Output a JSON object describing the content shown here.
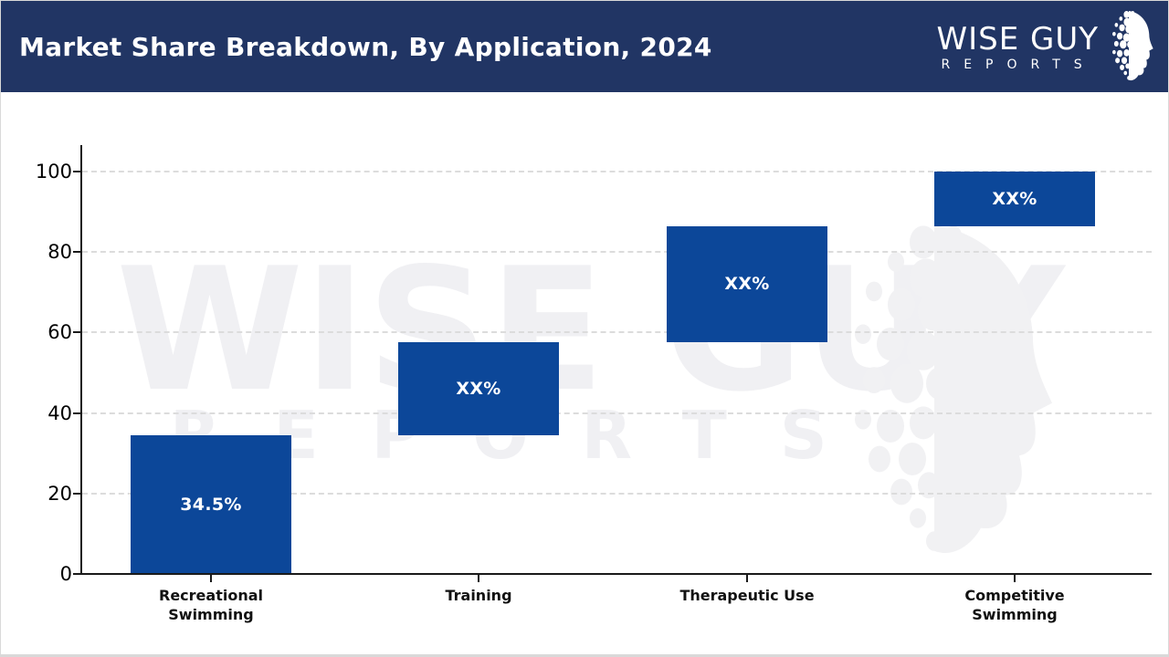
{
  "header": {
    "title": "Market Share Breakdown, By Application, 2024",
    "logo": {
      "line1": "WISE GUY",
      "line2": "REPORTS"
    }
  },
  "watermark": {
    "line1": "WISE GUY",
    "line2": "REPORTS"
  },
  "chart_data": {
    "type": "bar",
    "subtype": "waterfall",
    "title": "Market Share Breakdown, By Application, 2024",
    "units": "%",
    "categories": [
      "Recreational Swimming",
      "Training",
      "Therapeutic Use",
      "Competitive Swimming"
    ],
    "category_lines": [
      [
        "Recreational",
        "Swimming"
      ],
      [
        "Training"
      ],
      [
        "Therapeutic Use"
      ],
      [
        "Competitive",
        "Swimming"
      ]
    ],
    "segments": [
      {
        "category": "Recreational Swimming",
        "start": 0,
        "end": 34.5,
        "label": "34.5%"
      },
      {
        "category": "Training",
        "start": 34.5,
        "end": 57.5,
        "label": "XX%"
      },
      {
        "category": "Therapeutic Use",
        "start": 57.5,
        "end": 86.5,
        "label": "XX%"
      },
      {
        "category": "Competitive Swimming",
        "start": 86.5,
        "end": 100,
        "label": "XX%"
      }
    ],
    "yticks": [
      0,
      20,
      40,
      60,
      80,
      100
    ],
    "ylim": [
      0,
      107
    ],
    "grid": "horizontal dashed",
    "legend": "none",
    "bar_color": "#0c4799"
  },
  "colors": {
    "header_bg": "#213564",
    "bar": "#0c4799",
    "grid": "#dcdcdc",
    "axis": "#1a1a1a",
    "watermark": "#f0f0f3"
  }
}
